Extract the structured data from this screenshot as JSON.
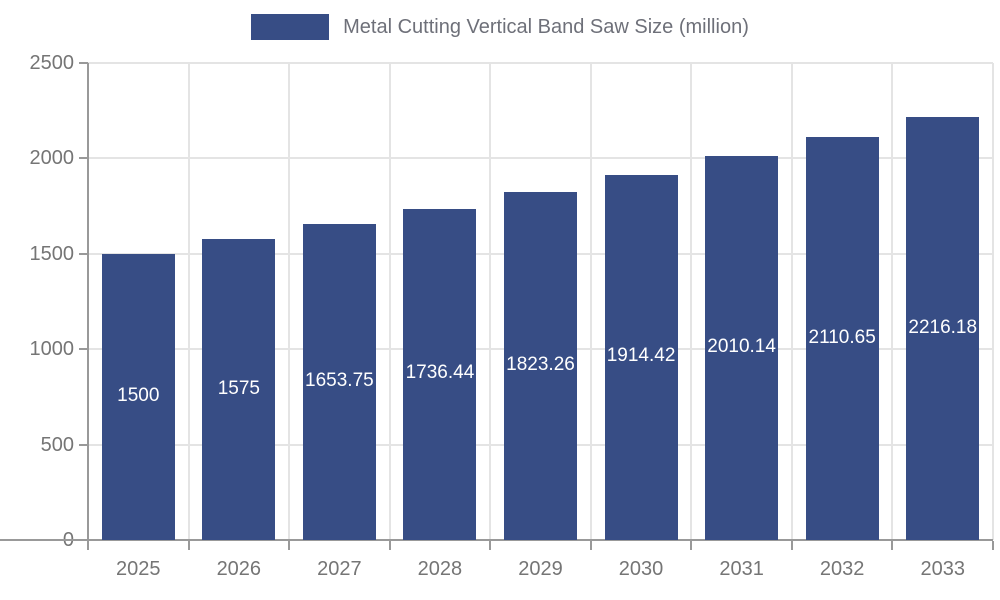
{
  "chart_data": {
    "type": "bar",
    "title": "Metal Cutting Vertical Band Saw Size (million)",
    "categories": [
      "2025",
      "2026",
      "2027",
      "2028",
      "2029",
      "2030",
      "2031",
      "2032",
      "2033"
    ],
    "series": [
      {
        "name": "Metal Cutting Vertical Band Saw Size (million)",
        "values": [
          1500,
          1575,
          1653.75,
          1736.44,
          1823.26,
          1914.42,
          2010.14,
          2110.65,
          2216.18
        ]
      }
    ],
    "xlabel": "",
    "ylabel": "",
    "ylim": [
      0,
      2500
    ],
    "yticks": [
      0,
      500,
      1000,
      1500,
      2000,
      2500
    ],
    "grid": true,
    "legend_position": "top",
    "value_label_position": "inside-middle"
  },
  "legend": {
    "label": "Metal Cutting Vertical Band Saw Size (million)"
  },
  "colors": {
    "bar": "#374D85",
    "grid": "#E4E4E4",
    "axis": "#999999",
    "tick_text": "#757575",
    "bar_label": "#FFFFFF",
    "legend_text": "#6E7079",
    "background": "#FFFFFF"
  }
}
